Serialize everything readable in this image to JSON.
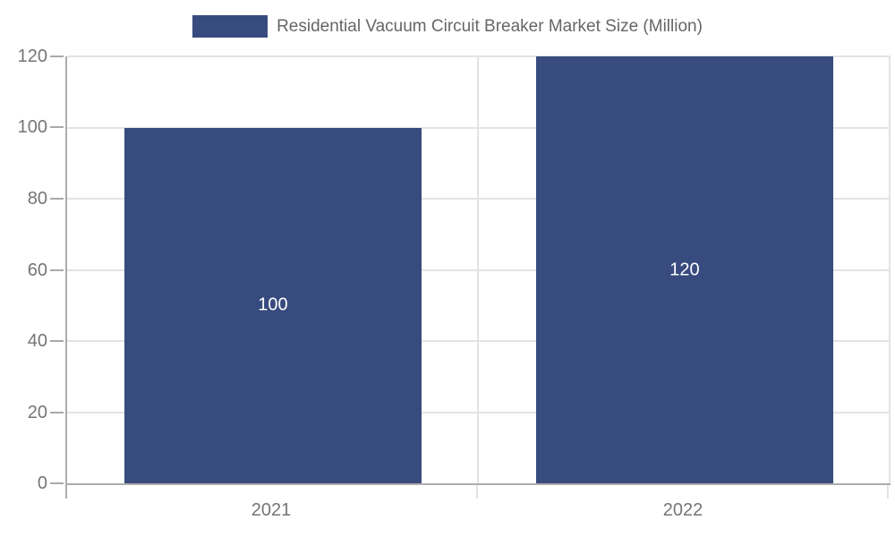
{
  "legend": {
    "label": "Residential Vacuum Circuit Breaker Market Size (Million)"
  },
  "chart_data": {
    "type": "bar",
    "title": "Residential Vacuum Circuit Breaker Market Size (Million)",
    "categories": [
      "2021",
      "2022"
    ],
    "values": [
      100,
      120
    ],
    "data_labels": [
      "100",
      "120"
    ],
    "xlabel": "",
    "ylabel": "",
    "ylim": [
      0,
      120
    ],
    "ytick_interval": 20,
    "ytick_labels": [
      "0",
      "20",
      "40",
      "60",
      "80",
      "100",
      "120"
    ],
    "grid": true,
    "legend_position": "top-center",
    "bar_color": "#384B7E",
    "bar_label_color": "#ffffff",
    "axis_line_color": "#adadad",
    "gridline_color": "#e3e3e3",
    "tick_label_color": "#757575"
  }
}
